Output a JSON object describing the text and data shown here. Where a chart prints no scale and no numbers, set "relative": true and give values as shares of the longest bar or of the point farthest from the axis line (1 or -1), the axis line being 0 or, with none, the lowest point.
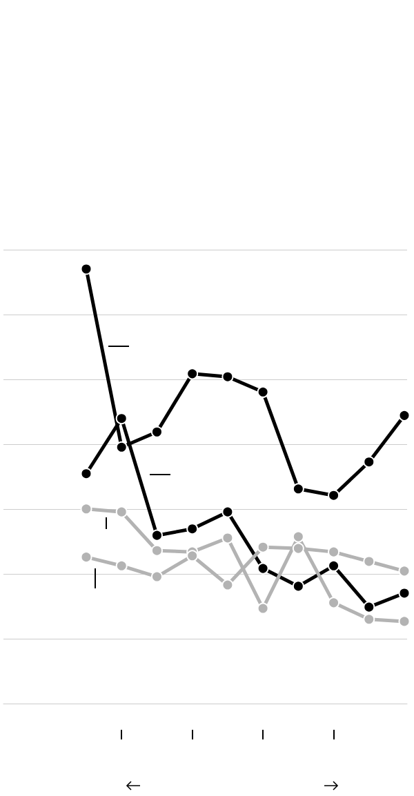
{
  "chart_data": {
    "type": "line",
    "relative": true,
    "grid": "y",
    "marker": "circle",
    "line_style": "solid",
    "categories": [
      null,
      null,
      null,
      null,
      null,
      null,
      null,
      null,
      null,
      null
    ],
    "series": [
      {
        "color": "#000000",
        "values": [
          1.0,
          0.59,
          0.625,
          0.759,
          0.752,
          0.717,
          0.494,
          0.479,
          0.556,
          0.663
        ]
      },
      {
        "color": "#000000",
        "values": [
          0.529,
          0.656,
          0.387,
          0.402,
          0.441,
          0.311,
          0.27,
          0.317,
          0.222,
          0.254
        ]
      },
      {
        "color": "#b3b3b3",
        "values": [
          0.448,
          0.441,
          0.352,
          0.349,
          0.381,
          0.219,
          0.384,
          0.232,
          0.194,
          0.189
        ]
      },
      {
        "color": "#b3b3b3",
        "values": [
          0.337,
          0.317,
          0.292,
          0.34,
          0.273,
          0.36,
          0.357,
          0.349,
          0.327,
          0.305
        ]
      }
    ]
  }
}
